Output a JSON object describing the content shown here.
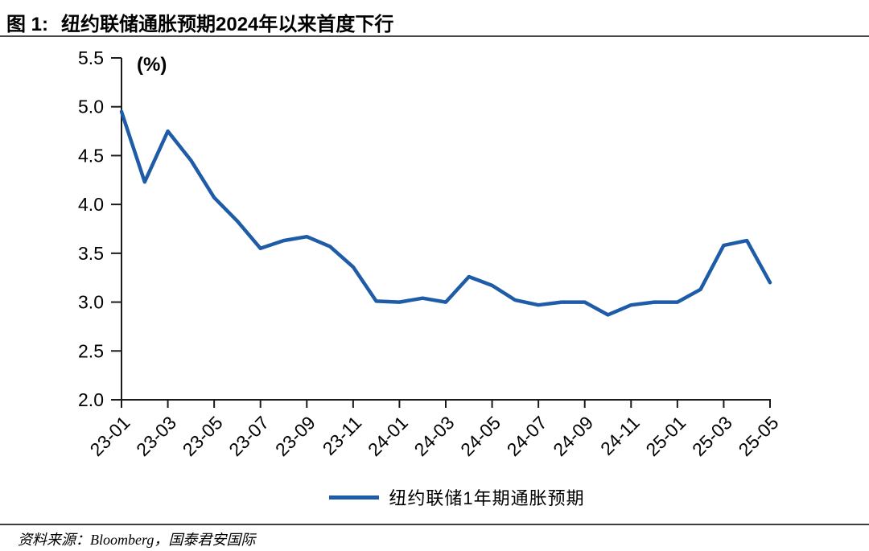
{
  "header": {
    "figure_label": "图 1:",
    "title": "纽约联储通胀预期2024年以来首度下行"
  },
  "chart_data": {
    "type": "line",
    "title": "纽约联储通胀预期2024年以来首度下行",
    "unit_label": "(%)",
    "x": [
      "23-01",
      "23-02",
      "23-03",
      "23-04",
      "23-05",
      "23-06",
      "23-07",
      "23-08",
      "23-09",
      "23-10",
      "23-11",
      "23-12",
      "24-01",
      "24-02",
      "24-03",
      "24-04",
      "24-05",
      "24-06",
      "24-07",
      "24-08",
      "24-09",
      "24-10",
      "24-11",
      "24-12",
      "25-01",
      "25-02",
      "25-03",
      "25-04",
      "25-05"
    ],
    "series": [
      {
        "name": "纽约联储1年期通胀预期",
        "color": "#1E5CA8",
        "values": [
          4.95,
          4.23,
          4.75,
          4.45,
          4.07,
          3.83,
          3.55,
          3.63,
          3.67,
          3.57,
          3.36,
          3.01,
          3.0,
          3.04,
          3.0,
          3.26,
          3.17,
          3.02,
          2.97,
          3.0,
          3.0,
          2.87,
          2.97,
          3.0,
          3.0,
          3.13,
          3.58,
          3.63,
          3.2
        ]
      }
    ],
    "ylim": [
      2.0,
      5.5
    ],
    "yticks": [
      2.0,
      2.5,
      3.0,
      3.5,
      4.0,
      4.5,
      5.0,
      5.5
    ],
    "xtick_every": 2,
    "xtick_labels": [
      "23-01",
      "23-03",
      "23-05",
      "23-07",
      "23-09",
      "23-11",
      "24-01",
      "24-03",
      "24-05",
      "24-07",
      "24-09",
      "24-11",
      "25-01",
      "25-03",
      "25-05"
    ],
    "grid": false,
    "legend_position": "bottom"
  },
  "legend": {
    "label": "纽约联储1年期通胀预期"
  },
  "footer": {
    "source": "资料来源：Bloomberg，国泰君安国际"
  },
  "colors": {
    "line": "#1E5CA8",
    "axis": "#1a1a1a",
    "rule": "#4a4a4a",
    "background": "#ffffff",
    "text": "#000000"
  }
}
